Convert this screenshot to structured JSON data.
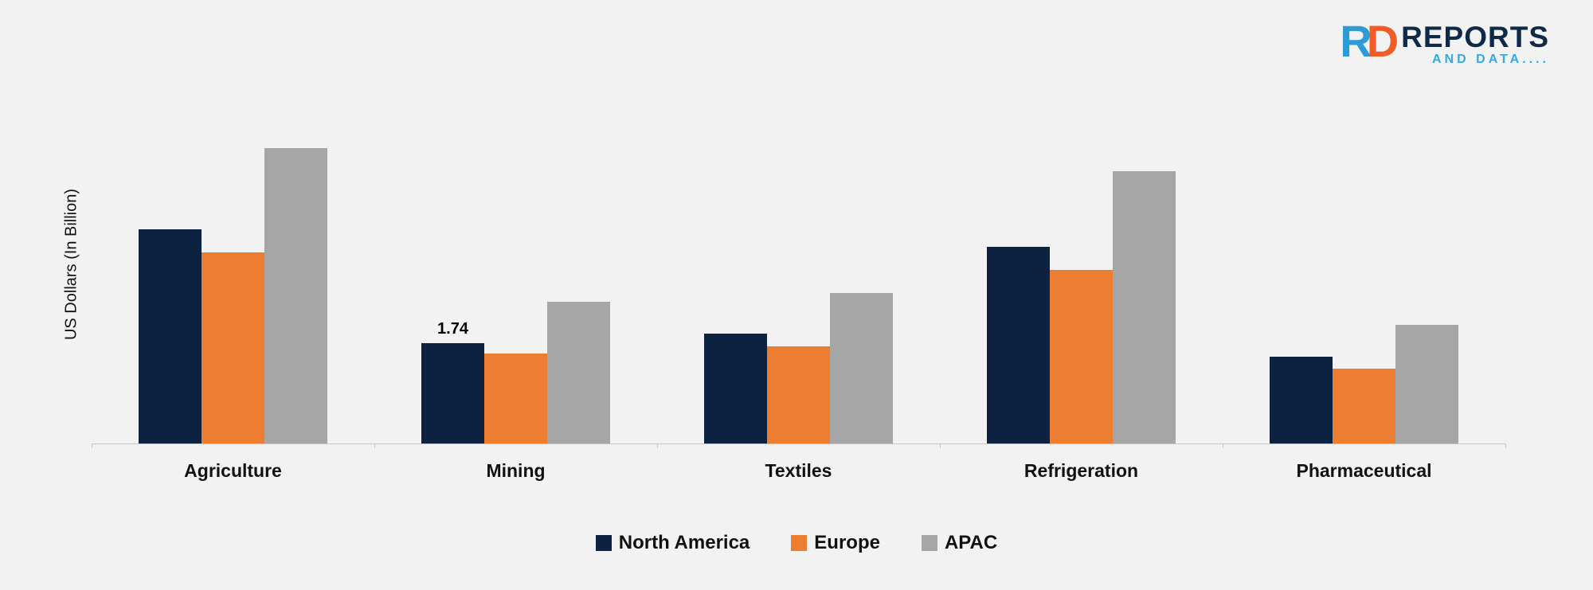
{
  "logo": {
    "monogram_r": "R",
    "monogram_d": "D",
    "title": "REPORTS",
    "subtitle": "AND DATA...."
  },
  "chart_data": {
    "type": "bar",
    "title": "",
    "ylabel": "US Dollars  (In Billion)",
    "categories": [
      "Agriculture",
      "Mining",
      "Textiles",
      "Refrigeration",
      "Pharmaceutical"
    ],
    "series": [
      {
        "name": "North America",
        "color": "#0d2240",
        "values": [
          3.7,
          1.74,
          1.9,
          3.4,
          1.5
        ]
      },
      {
        "name": "Europe",
        "color": "#ed7d31",
        "values": [
          3.3,
          1.55,
          1.68,
          3.0,
          1.3
        ]
      },
      {
        "name": "APAC",
        "color": "#a6a6a6",
        "values": [
          5.1,
          2.45,
          2.6,
          4.7,
          2.05
        ]
      }
    ],
    "data_labels": [
      {
        "series": "North America",
        "category": "Mining",
        "text": "1.74"
      }
    ],
    "ylim": [
      0,
      5.5
    ],
    "grid": false,
    "legend_position": "bottom",
    "background": "#f2f2f2"
  }
}
